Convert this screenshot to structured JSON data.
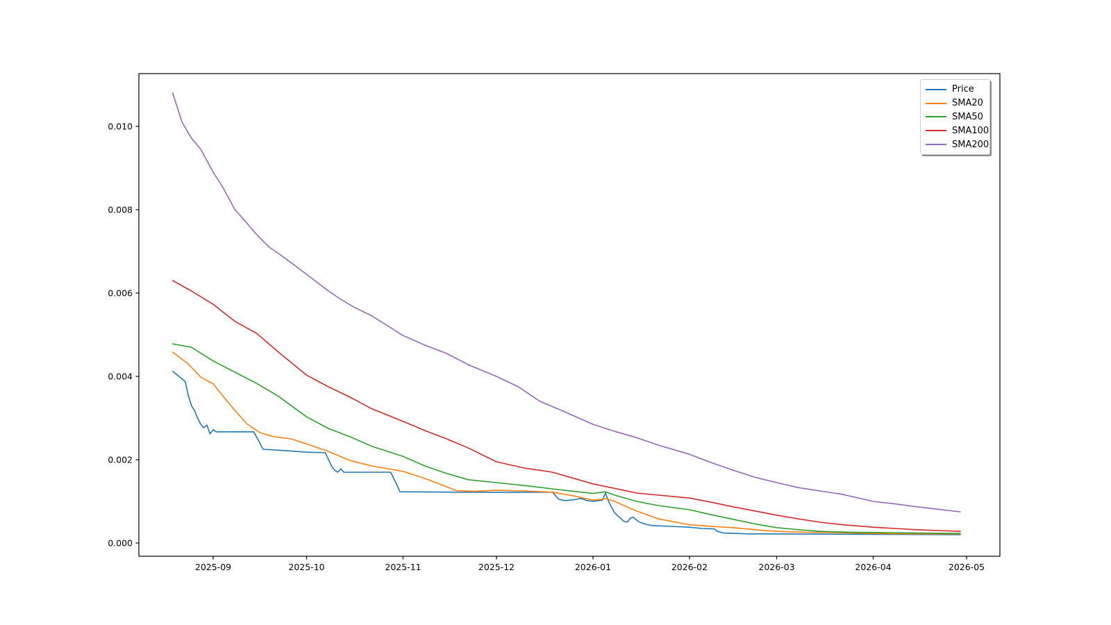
{
  "chart_data": {
    "type": "line",
    "title": "",
    "xlabel": "",
    "ylabel": "",
    "grid": false,
    "legend_position": "upper right",
    "legend_entries": [
      "Price",
      "SMA20",
      "SMA50",
      "SMA100",
      "SMA200"
    ],
    "x_ticks": [
      {
        "label": "2025-09",
        "date": "2025-09-01"
      },
      {
        "label": "2025-10",
        "date": "2025-10-01"
      },
      {
        "label": "2025-11",
        "date": "2025-11-01"
      },
      {
        "label": "2025-12",
        "date": "2025-12-01"
      },
      {
        "label": "2026-01",
        "date": "2026-01-01"
      },
      {
        "label": "2026-02",
        "date": "2026-02-01"
      },
      {
        "label": "2026-03",
        "date": "2026-03-01"
      },
      {
        "label": "2026-04",
        "date": "2026-04-01"
      },
      {
        "label": "2026-05",
        "date": "2026-05-01"
      }
    ],
    "y_ticks": [
      {
        "label": "0.000",
        "value": 0.0
      },
      {
        "label": "0.002",
        "value": 0.002
      },
      {
        "label": "0.004",
        "value": 0.004
      },
      {
        "label": "0.006",
        "value": 0.006
      },
      {
        "label": "0.008",
        "value": 0.008
      },
      {
        "label": "0.010",
        "value": 0.01
      }
    ],
    "ylim": [
      -0.00032,
      0.01132
    ],
    "xlim": [
      "2025-08-08",
      "2026-05-11"
    ],
    "series": [
      {
        "name": "Price",
        "color": "#1f77b4",
        "points": [
          [
            "2025-08-19",
            0.00412
          ],
          [
            "2025-08-21",
            0.004
          ],
          [
            "2025-08-23",
            0.00388
          ],
          [
            "2025-08-24",
            0.00355
          ],
          [
            "2025-08-25",
            0.0033
          ],
          [
            "2025-08-26",
            0.00318
          ],
          [
            "2025-08-27",
            0.003
          ],
          [
            "2025-08-28",
            0.00285
          ],
          [
            "2025-08-29",
            0.00277
          ],
          [
            "2025-08-30",
            0.00283
          ],
          [
            "2025-08-31",
            0.00262
          ],
          [
            "2025-09-01",
            0.00272
          ],
          [
            "2025-09-02",
            0.00267
          ],
          [
            "2025-09-14",
            0.00267
          ],
          [
            "2025-09-16",
            0.0024
          ],
          [
            "2025-09-17",
            0.00225
          ],
          [
            "2025-09-24",
            0.00222
          ],
          [
            "2025-10-01",
            0.00218
          ],
          [
            "2025-10-07",
            0.00217
          ],
          [
            "2025-10-09",
            0.00185
          ],
          [
            "2025-10-10",
            0.00175
          ],
          [
            "2025-10-11",
            0.0017
          ],
          [
            "2025-10-12",
            0.00178
          ],
          [
            "2025-10-13",
            0.0017
          ],
          [
            "2025-10-28",
            0.0017
          ],
          [
            "2025-10-30",
            0.0014
          ],
          [
            "2025-10-31",
            0.00123
          ],
          [
            "2025-11-20",
            0.00122
          ],
          [
            "2025-12-19",
            0.00122
          ],
          [
            "2025-12-21",
            0.00105
          ],
          [
            "2025-12-23",
            0.00102
          ],
          [
            "2025-12-26",
            0.00104
          ],
          [
            "2025-12-28",
            0.00107
          ],
          [
            "2025-12-30",
            0.00102
          ],
          [
            "2026-01-01",
            0.001
          ],
          [
            "2026-01-04",
            0.00103
          ],
          [
            "2026-01-05",
            0.0012
          ],
          [
            "2026-01-06",
            0.001
          ],
          [
            "2026-01-07",
            0.00085
          ],
          [
            "2026-01-08",
            0.00072
          ],
          [
            "2026-01-09",
            0.00065
          ],
          [
            "2026-01-11",
            0.00052
          ],
          [
            "2026-01-12",
            0.0005
          ],
          [
            "2026-01-13",
            0.0006
          ],
          [
            "2026-01-14",
            0.00062
          ],
          [
            "2026-01-15",
            0.00055
          ],
          [
            "2026-01-16",
            0.0005
          ],
          [
            "2026-01-18",
            0.00045
          ],
          [
            "2026-01-20",
            0.00042
          ],
          [
            "2026-01-26",
            0.0004
          ],
          [
            "2026-02-01",
            0.00038
          ],
          [
            "2026-02-05",
            0.00035
          ],
          [
            "2026-02-09",
            0.00034
          ],
          [
            "2026-02-10",
            0.00028
          ],
          [
            "2026-02-12",
            0.00024
          ],
          [
            "2026-02-20",
            0.00022
          ],
          [
            "2026-03-01",
            0.00022
          ],
          [
            "2026-04-01",
            0.00021
          ],
          [
            "2026-04-29",
            0.0002
          ]
        ]
      },
      {
        "name": "SMA20",
        "color": "#ff7f0e",
        "points": [
          [
            "2025-08-19",
            0.00458
          ],
          [
            "2025-08-24",
            0.0043
          ],
          [
            "2025-08-28",
            0.00398
          ],
          [
            "2025-09-01",
            0.00382
          ],
          [
            "2025-09-05",
            0.00345
          ],
          [
            "2025-09-08",
            0.00318
          ],
          [
            "2025-09-12",
            0.00285
          ],
          [
            "2025-09-16",
            0.00265
          ],
          [
            "2025-09-20",
            0.00256
          ],
          [
            "2025-09-26",
            0.0025
          ],
          [
            "2025-10-01",
            0.00238
          ],
          [
            "2025-10-08",
            0.0022
          ],
          [
            "2025-10-15",
            0.00198
          ],
          [
            "2025-10-22",
            0.00185
          ],
          [
            "2025-11-01",
            0.00172
          ],
          [
            "2025-11-08",
            0.00155
          ],
          [
            "2025-11-14",
            0.00138
          ],
          [
            "2025-11-18",
            0.00126
          ],
          [
            "2025-11-24",
            0.00124
          ],
          [
            "2025-12-01",
            0.00127
          ],
          [
            "2025-12-10",
            0.00125
          ],
          [
            "2025-12-19",
            0.00122
          ],
          [
            "2025-12-26",
            0.00113
          ],
          [
            "2026-01-01",
            0.00103
          ],
          [
            "2026-01-04",
            0.00105
          ],
          [
            "2026-01-05",
            0.00107
          ],
          [
            "2026-01-08",
            0.001
          ],
          [
            "2026-01-15",
            0.00077
          ],
          [
            "2026-01-22",
            0.00058
          ],
          [
            "2026-02-01",
            0.00044
          ],
          [
            "2026-02-08",
            0.0004
          ],
          [
            "2026-02-15",
            0.00037
          ],
          [
            "2026-02-22",
            0.00032
          ],
          [
            "2026-03-01",
            0.00028
          ],
          [
            "2026-03-10",
            0.00026
          ],
          [
            "2026-03-20",
            0.00025
          ],
          [
            "2026-04-01",
            0.00023
          ],
          [
            "2026-04-15",
            0.00022
          ],
          [
            "2026-04-29",
            0.00022
          ]
        ]
      },
      {
        "name": "SMA50",
        "color": "#2ca02c",
        "points": [
          [
            "2025-08-19",
            0.00478
          ],
          [
            "2025-08-25",
            0.0047
          ],
          [
            "2025-09-01",
            0.00437
          ],
          [
            "2025-09-08",
            0.0041
          ],
          [
            "2025-09-15",
            0.00383
          ],
          [
            "2025-09-22",
            0.00352
          ],
          [
            "2025-10-01",
            0.00303
          ],
          [
            "2025-10-08",
            0.00275
          ],
          [
            "2025-10-15",
            0.00255
          ],
          [
            "2025-10-22",
            0.00232
          ],
          [
            "2025-11-01",
            0.00208
          ],
          [
            "2025-11-08",
            0.00185
          ],
          [
            "2025-11-15",
            0.00167
          ],
          [
            "2025-11-22",
            0.00152
          ],
          [
            "2025-12-01",
            0.00145
          ],
          [
            "2025-12-10",
            0.00138
          ],
          [
            "2025-12-19",
            0.0013
          ],
          [
            "2025-12-26",
            0.00124
          ],
          [
            "2026-01-01",
            0.00119
          ],
          [
            "2026-01-04",
            0.00122
          ],
          [
            "2026-01-05",
            0.00123
          ],
          [
            "2026-01-08",
            0.00115
          ],
          [
            "2026-01-15",
            0.001
          ],
          [
            "2026-01-22",
            0.0009
          ],
          [
            "2026-02-01",
            0.0008
          ],
          [
            "2026-02-08",
            0.00068
          ],
          [
            "2026-02-15",
            0.00057
          ],
          [
            "2026-02-22",
            0.00046
          ],
          [
            "2026-03-01",
            0.00037
          ],
          [
            "2026-03-08",
            0.00032
          ],
          [
            "2026-03-15",
            0.00028
          ],
          [
            "2026-03-25",
            0.00026
          ],
          [
            "2026-04-05",
            0.00025
          ],
          [
            "2026-04-15",
            0.00024
          ],
          [
            "2026-04-29",
            0.00023
          ]
        ]
      },
      {
        "name": "SMA100",
        "color": "#d62728",
        "points": [
          [
            "2025-08-19",
            0.0063
          ],
          [
            "2025-08-25",
            0.00605
          ],
          [
            "2025-09-01",
            0.00573
          ],
          [
            "2025-09-08",
            0.00532
          ],
          [
            "2025-09-15",
            0.00503
          ],
          [
            "2025-09-22",
            0.00458
          ],
          [
            "2025-10-01",
            0.00403
          ],
          [
            "2025-10-08",
            0.00375
          ],
          [
            "2025-10-15",
            0.0035
          ],
          [
            "2025-10-22",
            0.00322
          ],
          [
            "2025-11-01",
            0.00292
          ],
          [
            "2025-11-08",
            0.0027
          ],
          [
            "2025-11-15",
            0.0025
          ],
          [
            "2025-11-22",
            0.00228
          ],
          [
            "2025-12-01",
            0.00195
          ],
          [
            "2025-12-10",
            0.0018
          ],
          [
            "2025-12-19",
            0.0017
          ],
          [
            "2026-01-01",
            0.00142
          ],
          [
            "2026-01-10",
            0.00128
          ],
          [
            "2026-01-15",
            0.0012
          ],
          [
            "2026-02-01",
            0.00108
          ],
          [
            "2026-02-08",
            0.00098
          ],
          [
            "2026-02-15",
            0.00087
          ],
          [
            "2026-02-22",
            0.00077
          ],
          [
            "2026-03-01",
            0.00067
          ],
          [
            "2026-03-08",
            0.00058
          ],
          [
            "2026-03-15",
            0.0005
          ],
          [
            "2026-03-22",
            0.00044
          ],
          [
            "2026-04-01",
            0.00038
          ],
          [
            "2026-04-08",
            0.00035
          ],
          [
            "2026-04-15",
            0.00032
          ],
          [
            "2026-04-22",
            0.0003
          ],
          [
            "2026-04-29",
            0.00028
          ]
        ]
      },
      {
        "name": "SMA200",
        "color": "#9467bd",
        "points": [
          [
            "2025-08-19",
            0.0108
          ],
          [
            "2025-08-22",
            0.0101
          ],
          [
            "2025-08-25",
            0.00972
          ],
          [
            "2025-08-28",
            0.00945
          ],
          [
            "2025-09-01",
            0.0089
          ],
          [
            "2025-09-04",
            0.00855
          ],
          [
            "2025-09-08",
            0.008
          ],
          [
            "2025-09-11",
            0.00775
          ],
          [
            "2025-09-15",
            0.0074
          ],
          [
            "2025-09-19",
            0.0071
          ],
          [
            "2025-09-22",
            0.00695
          ],
          [
            "2025-09-26",
            0.00673
          ],
          [
            "2025-10-01",
            0.00645
          ],
          [
            "2025-10-05",
            0.00622
          ],
          [
            "2025-10-08",
            0.00605
          ],
          [
            "2025-10-12",
            0.00585
          ],
          [
            "2025-10-16",
            0.00567
          ],
          [
            "2025-10-22",
            0.00545
          ],
          [
            "2025-11-01",
            0.00498
          ],
          [
            "2025-11-08",
            0.00475
          ],
          [
            "2025-11-15",
            0.00455
          ],
          [
            "2025-11-22",
            0.00428
          ],
          [
            "2025-12-01",
            0.004
          ],
          [
            "2025-12-08",
            0.00375
          ],
          [
            "2025-12-15",
            0.0034
          ],
          [
            "2025-12-22",
            0.00318
          ],
          [
            "2026-01-01",
            0.00285
          ],
          [
            "2026-01-08",
            0.00268
          ],
          [
            "2026-01-15",
            0.00253
          ],
          [
            "2026-01-22",
            0.00235
          ],
          [
            "2026-02-01",
            0.00213
          ],
          [
            "2026-02-08",
            0.00193
          ],
          [
            "2026-02-15",
            0.00175
          ],
          [
            "2026-02-22",
            0.00158
          ],
          [
            "2026-03-01",
            0.00145
          ],
          [
            "2026-03-08",
            0.00133
          ],
          [
            "2026-03-15",
            0.00125
          ],
          [
            "2026-03-22",
            0.00117
          ],
          [
            "2026-04-01",
            0.001
          ],
          [
            "2026-04-08",
            0.00094
          ],
          [
            "2026-04-15",
            0.00087
          ],
          [
            "2026-04-22",
            0.00081
          ],
          [
            "2026-04-29",
            0.00075
          ]
        ]
      }
    ]
  }
}
